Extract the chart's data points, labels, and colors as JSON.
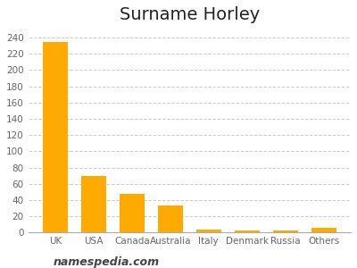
{
  "title": "Surname Horley",
  "categories": [
    "UK",
    "USA",
    "Canada",
    "Australia",
    "Italy",
    "Denmark",
    "Russia",
    "Others"
  ],
  "values": [
    235,
    70,
    47,
    33,
    4,
    2,
    2,
    6
  ],
  "bar_color": "#FFAA00",
  "ylim": [
    0,
    250
  ],
  "yticks": [
    0,
    20,
    40,
    60,
    80,
    100,
    120,
    140,
    160,
    180,
    200,
    220,
    240
  ],
  "grid_color": "#cccccc",
  "background_color": "#ffffff",
  "title_fontsize": 14,
  "tick_fontsize": 7.5,
  "footer_text": "namespedia.com",
  "footer_fontsize": 9,
  "bar_width": 0.65
}
